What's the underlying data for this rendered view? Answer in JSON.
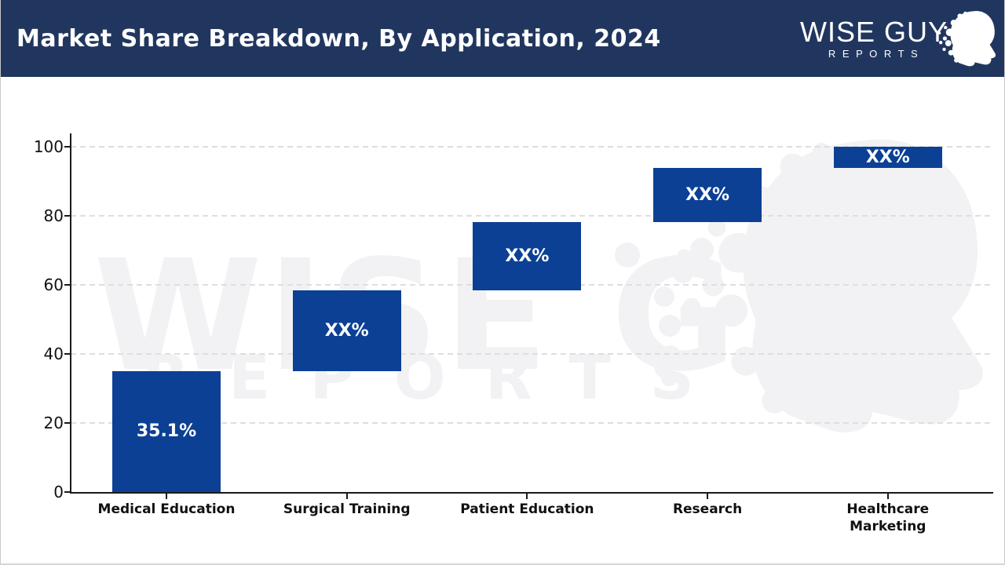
{
  "header": {
    "title": "Market Share Breakdown, By Application, 2024",
    "logo": {
      "line1": "WISE GUY",
      "line2": "R E P O R T S"
    }
  },
  "watermark": {
    "line1": "WISE GU",
    "line2": "REPORTS"
  },
  "colors": {
    "header_bg": "#21365f",
    "bar": "#0b4095",
    "grid": "#dedede",
    "axis": "#1a1a1a",
    "watermark": "#f2f2f4",
    "bar_label": "#ffffff"
  },
  "chart_data": {
    "type": "bar",
    "subtype": "stacked-waterfall",
    "title": "Market Share Breakdown, By Application, 2024",
    "categories": [
      "Medical Education",
      "Surgical Training",
      "Patient Education",
      "Research",
      "Healthcare\nMarketing"
    ],
    "segments": [
      {
        "category": "Medical Education",
        "start": 0,
        "end": 35.1,
        "value": 35.1,
        "label": "35.1%"
      },
      {
        "category": "Surgical Training",
        "start": 35.1,
        "end": 58.5,
        "value": 23.4,
        "label": "XX%"
      },
      {
        "category": "Patient Education",
        "start": 58.5,
        "end": 78.2,
        "value": 19.7,
        "label": "XX%"
      },
      {
        "category": "Research",
        "start": 78.2,
        "end": 93.8,
        "value": 15.6,
        "label": "XX%"
      },
      {
        "category": "Healthcare Marketing",
        "start": 93.8,
        "end": 100,
        "value": 6.2,
        "label": "XX%"
      }
    ],
    "yticks": [
      0,
      20,
      40,
      60,
      80,
      100
    ],
    "ylim": [
      0,
      104
    ],
    "xlabel": "",
    "ylabel": "",
    "grid": "horizontal-dashed",
    "legend": "none"
  }
}
